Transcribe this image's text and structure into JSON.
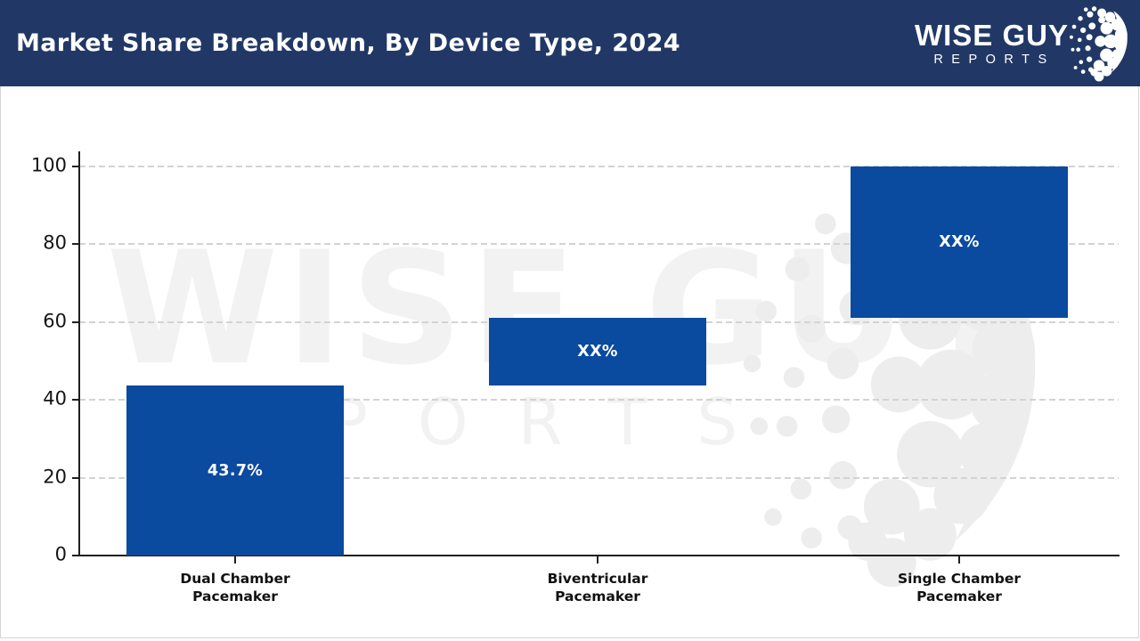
{
  "header": {
    "title": "Market Share Breakdown, By Device Type, 2024",
    "logo": {
      "name": "WISE GUY",
      "tagline": "REPORTS"
    }
  },
  "watermark": {
    "line1": "WISE GUY",
    "line2": "REPORTS"
  },
  "colors": {
    "header_bg": "#213866",
    "bar": "#0a4a9f",
    "bar_label": "#ffffff",
    "grid": "#d3d3d3",
    "axis": "#1f1f1f",
    "watermark": "#f2f2f2",
    "border_hairline": "#d5d5d5"
  },
  "chart_data": {
    "type": "bar",
    "subtype": "waterfall",
    "title": "Market Share Breakdown, By Device Type, 2024",
    "categories": [
      "Dual Chamber Pacemaker",
      "Biventricular Pacemaker",
      "Single Chamber Pacemaker"
    ],
    "category_lines": [
      [
        "Dual Chamber",
        "Pacemaker"
      ],
      [
        "Biventricular",
        "Pacemaker"
      ],
      [
        "Single Chamber",
        "Pacemaker"
      ]
    ],
    "segments": [
      {
        "category": "Dual Chamber Pacemaker",
        "start": 0,
        "end": 43.7,
        "label": "43.7%"
      },
      {
        "category": "Biventricular Pacemaker",
        "start": 43.7,
        "end": 61.0,
        "label": "XX%"
      },
      {
        "category": "Single Chamber Pacemaker",
        "start": 61.0,
        "end": 100.0,
        "label": "XX%"
      }
    ],
    "xlabel": "",
    "ylabel": "",
    "ylim": [
      0,
      100
    ],
    "yticks": [
      0,
      20,
      40,
      60,
      80,
      100
    ],
    "grid": "horizontal-dashed",
    "legend": "none"
  }
}
